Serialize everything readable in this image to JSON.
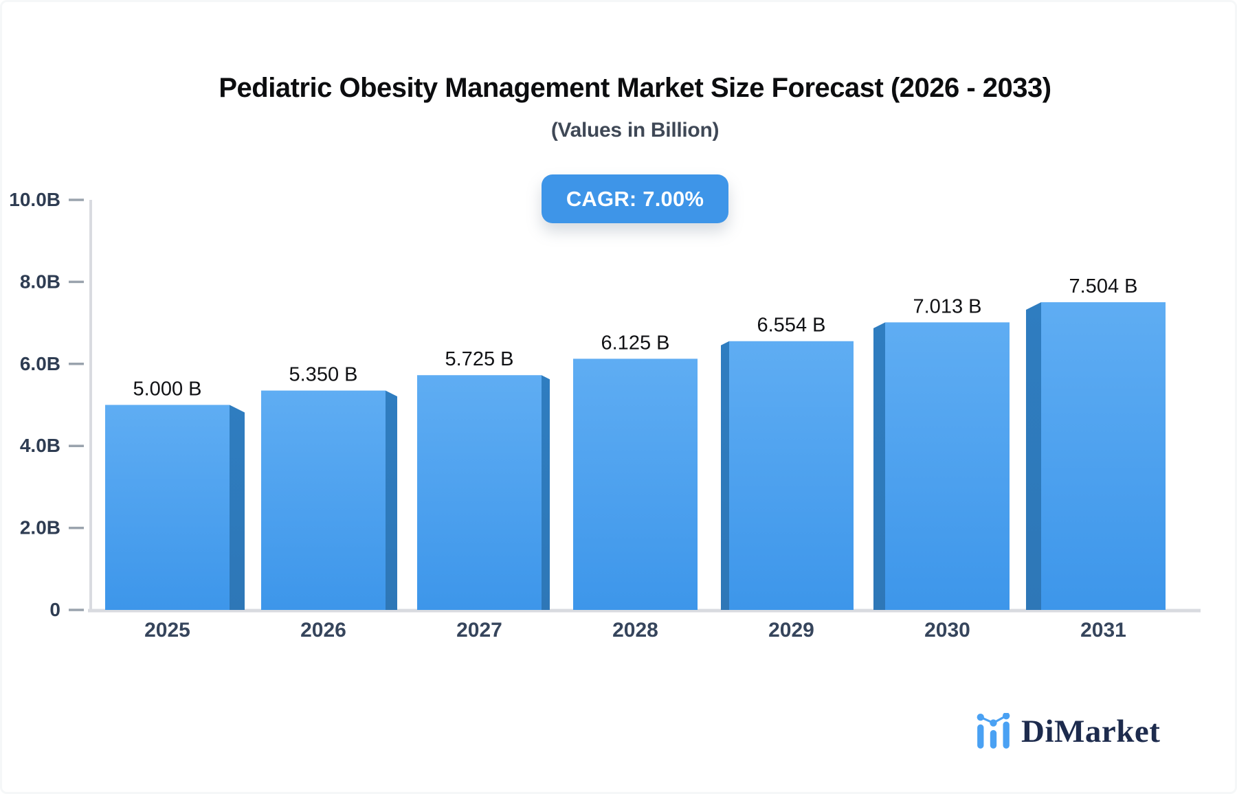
{
  "header": {
    "title": "Pediatric Obesity Management Market Size Forecast (2026 - 2033)",
    "subtitle": "(Values in Billion)",
    "cagr_label": "CAGR: 7.00%"
  },
  "branding": {
    "name": "DiMarket",
    "icon": "bar-line-chart-icon"
  },
  "chart_data": {
    "type": "bar",
    "title": "Pediatric Obesity Management Market Size Forecast (2026 - 2033)",
    "subtitle": "(Values in Billion)",
    "cagr": "7.00%",
    "unit": "Billion",
    "categories": [
      "2025",
      "2026",
      "2027",
      "2028",
      "2029",
      "2030",
      "2031"
    ],
    "values": [
      5.0,
      5.35,
      5.725,
      6.125,
      6.554,
      7.013,
      7.504
    ],
    "value_labels": [
      "5.000 B",
      "5.350 B",
      "5.725 B",
      "6.125 B",
      "6.554 B",
      "7.013 B",
      "7.504 B"
    ],
    "xlabel": "",
    "ylabel": "",
    "ylim": [
      0,
      10
    ],
    "yticks": [
      {
        "value": 0,
        "label": "0"
      },
      {
        "value": 2,
        "label": "2.0B"
      },
      {
        "value": 4,
        "label": "4.0B"
      },
      {
        "value": 6,
        "label": "6.0B"
      },
      {
        "value": 8,
        "label": "8.0B"
      },
      {
        "value": 10,
        "label": "10.0B"
      }
    ],
    "grid": false,
    "legend": false,
    "bar_style": "3d-extruded"
  },
  "colors": {
    "accent_blue": "#3e95e8",
    "bar_face_top": "#5fadf3",
    "bar_face_bottom": "#3d96ea",
    "bar_side": "#2e77b7",
    "axis_line": "#d9dbe0",
    "tick_mark": "#9aa3ad",
    "y_label": "#2e3c52",
    "x_label": "#36455c",
    "value_label": "#101114",
    "title_text": "#0c0d0f",
    "subtitle_text": "#3f4856",
    "logo_navy": "#1d2b4d",
    "logo_blue": "#4aa1f3",
    "background": "#ffffff"
  }
}
